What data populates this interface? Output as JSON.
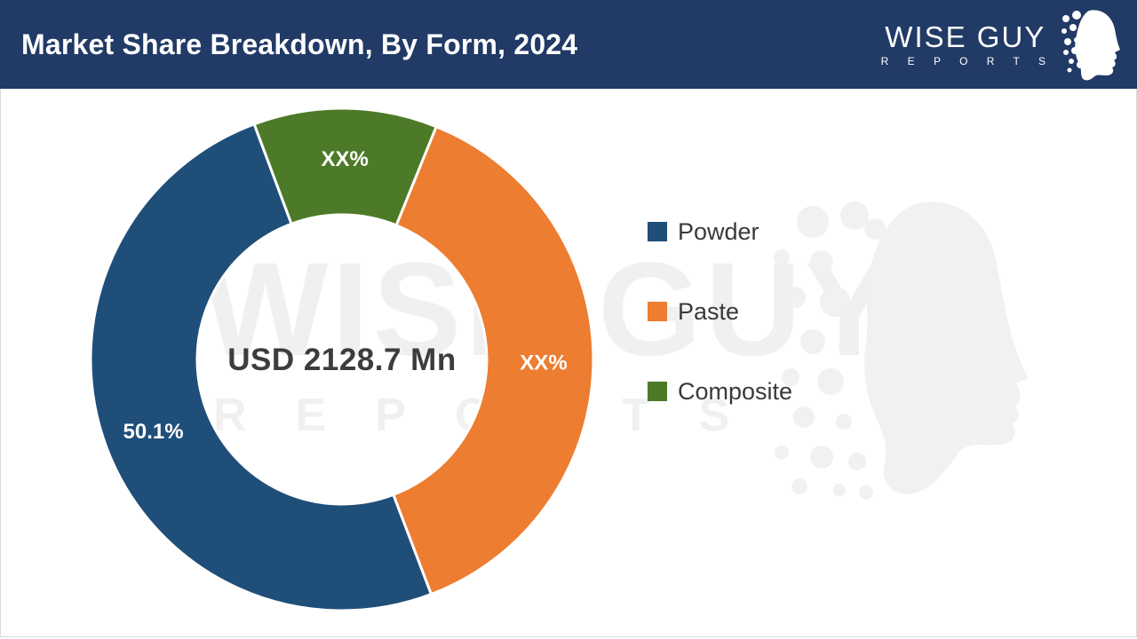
{
  "header": {
    "title": "Market Share Breakdown, By Form, 2024",
    "bg_color": "#213A66",
    "logo": {
      "line1": "WISE GUY",
      "line2": "R E P O R T S"
    }
  },
  "watermark": {
    "line1": "WISE GUY",
    "line2": "REPORTS"
  },
  "chart_data": {
    "type": "pie",
    "subtype": "donut",
    "title": "Market Share Breakdown, By Form, 2024",
    "center_label": "USD 2128.7 Mn",
    "rotation_deg_cw_from_top": 159.2,
    "slices": [
      {
        "name": "Powder",
        "value": 50.1,
        "display": "50.1%",
        "color": "#1F4E79"
      },
      {
        "name": "Composite",
        "value": 11.8,
        "display": "XX%",
        "color": "#4D7A28"
      },
      {
        "name": "Paste",
        "value": 38.1,
        "display": "XX%",
        "color": "#ED7D31"
      }
    ],
    "legend": [
      {
        "label": "Powder",
        "color": "#1F4E79"
      },
      {
        "label": "Paste",
        "color": "#ED7D31"
      },
      {
        "label": "Composite",
        "color": "#4D7A28"
      }
    ],
    "legend_position": "right",
    "grid": false
  }
}
